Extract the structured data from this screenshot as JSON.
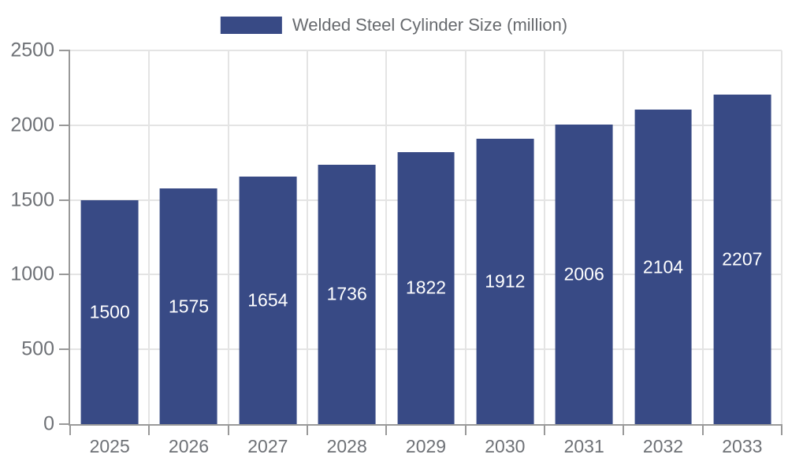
{
  "legend": {
    "label": "Welded Steel Cylinder Size (million)"
  },
  "colors": {
    "bar": "#384a85",
    "grid": "#e4e4e4",
    "axis_line": "#999999",
    "axis_text": "#6e7176",
    "legend_text": "#676a6e",
    "bar_label": "#ffffff",
    "background": "#ffffff"
  },
  "chart_data": {
    "type": "bar",
    "title": "Welded Steel Cylinder Size (million)",
    "categories": [
      "2025",
      "2026",
      "2027",
      "2028",
      "2029",
      "2030",
      "2031",
      "2032",
      "2033"
    ],
    "series": [
      {
        "name": "Welded Steel Cylinder Size (million)",
        "values": [
          1500,
          1575,
          1654,
          1736,
          1822,
          1912,
          2006,
          2104,
          2207
        ]
      }
    ],
    "xlabel": "",
    "ylabel": "",
    "ylim": [
      0,
      2500
    ],
    "yticks": [
      0,
      500,
      1000,
      1500,
      2000,
      2500
    ],
    "grid": true,
    "legend_position": "top",
    "value_labels": "inside-middle"
  }
}
